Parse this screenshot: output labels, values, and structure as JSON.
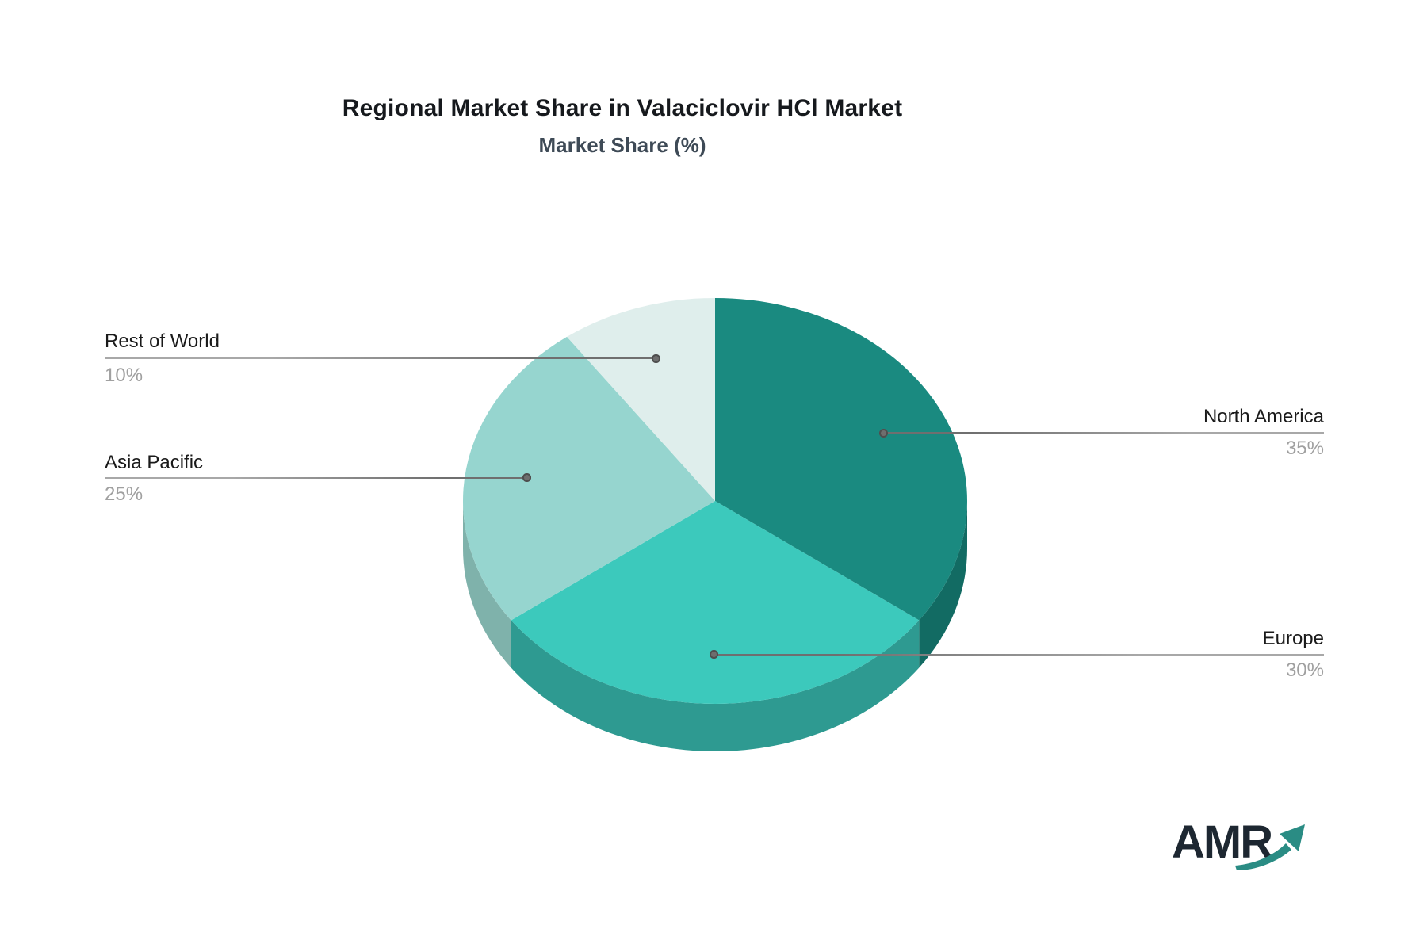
{
  "chart_data": {
    "type": "pie",
    "style": "3d",
    "title": "Regional Market Share in Valaciclovir HCl Market",
    "subtitle": "Market Share (%)",
    "unit": "%",
    "start_angle_deg": 0,
    "direction": "clockwise",
    "legend_position": "none",
    "label_style": "outside-callouts-with-leader-lines",
    "slices": [
      {
        "label": "North America",
        "value": 35,
        "value_label": "35%",
        "color": "#1a8a80",
        "side_color": "#126b63"
      },
      {
        "label": "Europe",
        "value": 30,
        "value_label": "30%",
        "color": "#3cc9bc",
        "side_color": "#2e9a91"
      },
      {
        "label": "Asia Pacific",
        "value": 25,
        "value_label": "25%",
        "color": "#96d5cf",
        "side_color": "#7fb2ab"
      },
      {
        "label": "Rest of World",
        "value": 10,
        "value_label": "10%",
        "color": "#dfeeec",
        "side_color": "#c2dcd8"
      }
    ]
  },
  "logo": {
    "text": "AMR",
    "text_color": "#1d2731",
    "arrow_color": "#2a8c84"
  }
}
